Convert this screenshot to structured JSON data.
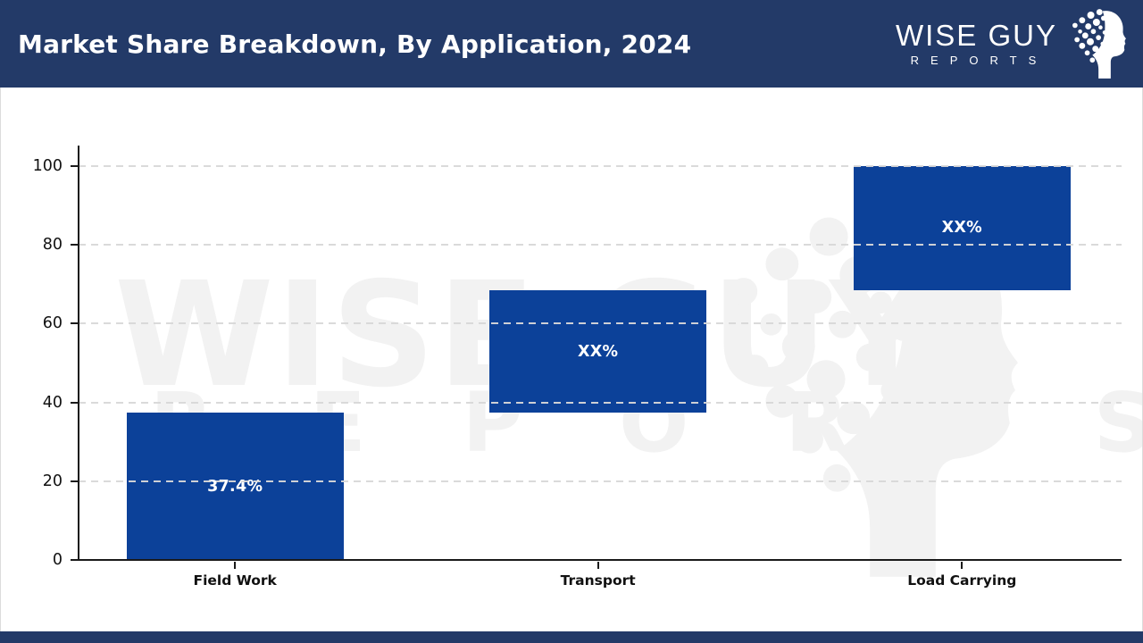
{
  "header": {
    "title": "Market Share Breakdown, By Application, 2024",
    "logo": {
      "line1": "WISE GUY",
      "line2": "REPORTS",
      "head_icon": "dotted-head-profile"
    }
  },
  "watermark": {
    "line1": "WISE GUY",
    "line2": "REPORTS",
    "head_icon": "dotted-head-profile"
  },
  "chart_data": {
    "type": "bar",
    "subtype": "waterfall",
    "title": "Market Share Breakdown, By Application, 2024",
    "categories": [
      "Field Work",
      "Transport",
      "Load Carrying"
    ],
    "series": [
      {
        "name": "Market Share %",
        "segments": [
          {
            "category": "Field Work",
            "start": 0,
            "end": 37.4,
            "label": "37.4%"
          },
          {
            "category": "Transport",
            "start": 37.4,
            "end": 68.5,
            "label": "XX%"
          },
          {
            "category": "Load Carrying",
            "start": 68.5,
            "end": 100,
            "label": "XX%"
          }
        ]
      }
    ],
    "xlabel": "",
    "ylabel": "",
    "ylim": [
      0,
      100
    ],
    "yticks": [
      0,
      20,
      40,
      60,
      80,
      100
    ],
    "grid": "horizontal-dashed",
    "legend": "none",
    "colors": {
      "bar": "#0c4199",
      "bar_label": "#ffffff",
      "grid": "#d8d8d8",
      "axis": "#1a1a1a",
      "tick_label": "#111111",
      "header_bg": "#233a68",
      "footer_bg": "#233a68",
      "watermark": "#f2f2f2"
    }
  }
}
